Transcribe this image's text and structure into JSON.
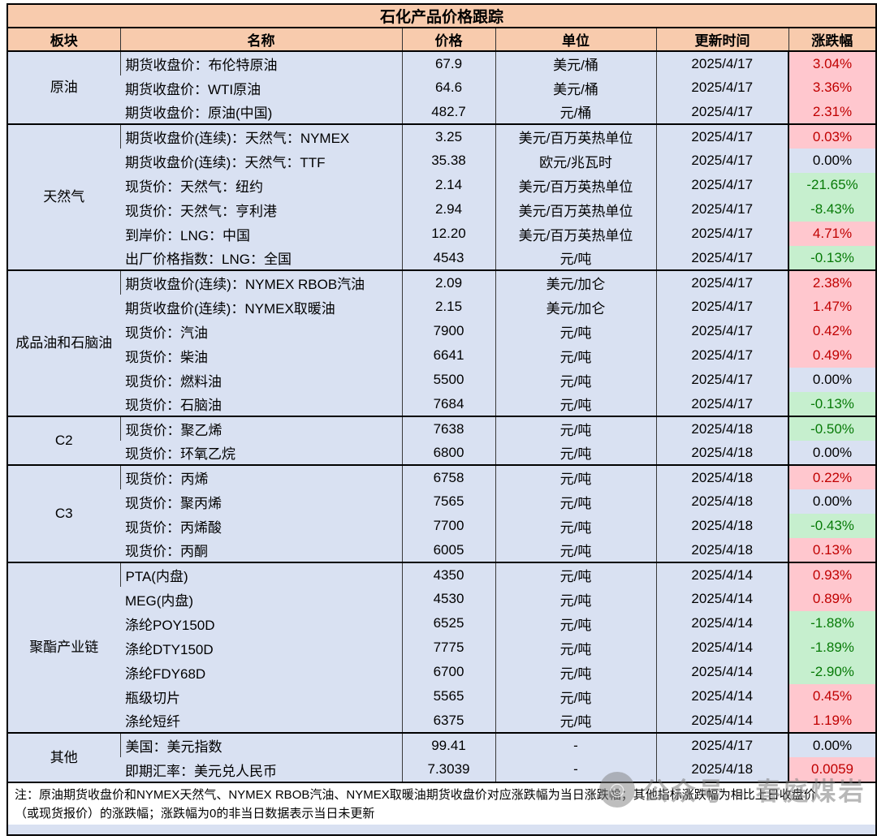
{
  "chart_data": {
    "type": "table",
    "title": "石化产品价格跟踪",
    "columns": [
      "板块",
      "名称",
      "价格",
      "单位",
      "更新时间",
      "涨跌幅"
    ],
    "sections": [
      {
        "name": "原油",
        "rows": [
          {
            "name": "期货收盘价：布伦特原油",
            "price": "67.9",
            "unit": "美元/桶",
            "date": "2025/4/17",
            "change": "3.04%",
            "dir": "up"
          },
          {
            "name": "期货收盘价：WTI原油",
            "price": "64.6",
            "unit": "美元/桶",
            "date": "2025/4/17",
            "change": "3.36%",
            "dir": "up"
          },
          {
            "name": "期货收盘价：原油(中国)",
            "price": "482.7",
            "unit": "元/桶",
            "date": "2025/4/17",
            "change": "2.31%",
            "dir": "up"
          }
        ]
      },
      {
        "name": "天然气",
        "rows": [
          {
            "name": "期货收盘价(连续)：天然气：NYMEX",
            "price": "3.25",
            "unit": "美元/百万英热单位",
            "date": "2025/4/17",
            "change": "0.03%",
            "dir": "up"
          },
          {
            "name": "期货收盘价(连续)：天然气：TTF",
            "price": "35.38",
            "unit": "欧元/兆瓦时",
            "date": "2025/4/17",
            "change": "0.00%",
            "dir": "flat"
          },
          {
            "name": "现货价：天然气：纽约",
            "price": "2.14",
            "unit": "美元/百万英热单位",
            "date": "2025/4/17",
            "change": "-21.65%",
            "dir": "down"
          },
          {
            "name": "现货价：天然气：亨利港",
            "price": "2.94",
            "unit": "美元/百万英热单位",
            "date": "2025/4/17",
            "change": "-8.43%",
            "dir": "down"
          },
          {
            "name": "到岸价：LNG：中国",
            "price": "12.20",
            "unit": "美元/百万英热单位",
            "date": "2025/4/17",
            "change": "4.71%",
            "dir": "up"
          },
          {
            "name": "出厂价格指数：LNG：全国",
            "price": "4543",
            "unit": "元/吨",
            "date": "2025/4/17",
            "change": "-0.13%",
            "dir": "down"
          }
        ]
      },
      {
        "name": "成品油和石脑油",
        "rows": [
          {
            "name": "期货收盘价(连续)：NYMEX RBOB汽油",
            "price": "2.09",
            "unit": "美元/加仑",
            "date": "2025/4/17",
            "change": "2.38%",
            "dir": "up"
          },
          {
            "name": "期货收盘价(连续)：NYMEX取暖油",
            "price": "2.15",
            "unit": "美元/加仑",
            "date": "2025/4/17",
            "change": "1.47%",
            "dir": "up"
          },
          {
            "name": "现货价：汽油",
            "price": "7900",
            "unit": "元/吨",
            "date": "2025/4/17",
            "change": "0.42%",
            "dir": "up"
          },
          {
            "name": "现货价：柴油",
            "price": "6641",
            "unit": "元/吨",
            "date": "2025/4/17",
            "change": "0.49%",
            "dir": "up"
          },
          {
            "name": "现货价：燃料油",
            "price": "5500",
            "unit": "元/吨",
            "date": "2025/4/17",
            "change": "0.00%",
            "dir": "flat"
          },
          {
            "name": "现货价：石脑油",
            "price": "7684",
            "unit": "元/吨",
            "date": "2025/4/17",
            "change": "-0.13%",
            "dir": "down"
          }
        ]
      },
      {
        "name": "C2",
        "rows": [
          {
            "name": "现货价：聚乙烯",
            "price": "7638",
            "unit": "元/吨",
            "date": "2025/4/18",
            "change": "-0.50%",
            "dir": "down"
          },
          {
            "name": "现货价：环氧乙烷",
            "price": "6800",
            "unit": "元/吨",
            "date": "2025/4/18",
            "change": "0.00%",
            "dir": "flat"
          }
        ]
      },
      {
        "name": "C3",
        "rows": [
          {
            "name": "现货价：丙烯",
            "price": "6758",
            "unit": "元/吨",
            "date": "2025/4/18",
            "change": "0.22%",
            "dir": "up"
          },
          {
            "name": "现货价：聚丙烯",
            "price": "7565",
            "unit": "元/吨",
            "date": "2025/4/18",
            "change": "0.00%",
            "dir": "flat"
          },
          {
            "name": "现货价：丙烯酸",
            "price": "7700",
            "unit": "元/吨",
            "date": "2025/4/18",
            "change": "-0.43%",
            "dir": "down"
          },
          {
            "name": "现货价：丙酮",
            "price": "6005",
            "unit": "元/吨",
            "date": "2025/4/18",
            "change": "0.13%",
            "dir": "up"
          }
        ]
      },
      {
        "name": "聚酯产业链",
        "rows": [
          {
            "name": "PTA(内盘)",
            "price": "4350",
            "unit": "元/吨",
            "date": "2025/4/14",
            "change": "0.93%",
            "dir": "up"
          },
          {
            "name": "MEG(内盘)",
            "price": "4530",
            "unit": "元/吨",
            "date": "2025/4/14",
            "change": "0.89%",
            "dir": "up"
          },
          {
            "name": "涤纶POY150D",
            "price": "6525",
            "unit": "元/吨",
            "date": "2025/4/14",
            "change": "-1.88%",
            "dir": "down"
          },
          {
            "name": "涤纶DTY150D",
            "price": "7775",
            "unit": "元/吨",
            "date": "2025/4/14",
            "change": "-1.89%",
            "dir": "down"
          },
          {
            "name": "涤纶FDY68D",
            "price": "6700",
            "unit": "元/吨",
            "date": "2025/4/14",
            "change": "-2.90%",
            "dir": "down"
          },
          {
            "name": "瓶级切片",
            "price": "5565",
            "unit": "元/吨",
            "date": "2025/4/14",
            "change": "0.45%",
            "dir": "up"
          },
          {
            "name": "涤纶短纤",
            "price": "6375",
            "unit": "元/吨",
            "date": "2025/4/14",
            "change": "1.19%",
            "dir": "up"
          }
        ]
      },
      {
        "name": "其他",
        "rows": [
          {
            "name": "美国：美元指数",
            "price": "99.41",
            "unit": "-",
            "date": "2025/4/17",
            "change": "0.00%",
            "dir": "flat"
          },
          {
            "name": "即期汇率：美元兑人民币",
            "price": "7.3039",
            "unit": "-",
            "date": "2025/4/18",
            "change": "0.0059",
            "dir": "up"
          }
        ]
      }
    ],
    "layout": {
      "grid": "bordered table, sector column merged per section",
      "legend_position": "none"
    }
  },
  "colors": {
    "header_bg": "#F8CBAD",
    "body_bg": "#D9E1F2",
    "up_bg": "#FFC7CE",
    "up_text": "#C00000",
    "down_bg": "#C6EFCE",
    "down_text": "#077A07",
    "border": "#000000"
  },
  "footer": {
    "line1": "注：原油期货收盘价和NYMEX天然气、NYMEX RBOB汽油、NYMEX取暖油期货收盘价对应涨跌幅为当日涨跌幅；其他指标涨跌幅为相比上日收盘价",
    "line2": "（或现货报价）的涨跌幅；涨跌幅为0的非当日数据表示当日未更新"
  },
  "watermark": {
    "logo_glyph": "☺",
    "text": "公众号 - 春庭煤岩"
  }
}
